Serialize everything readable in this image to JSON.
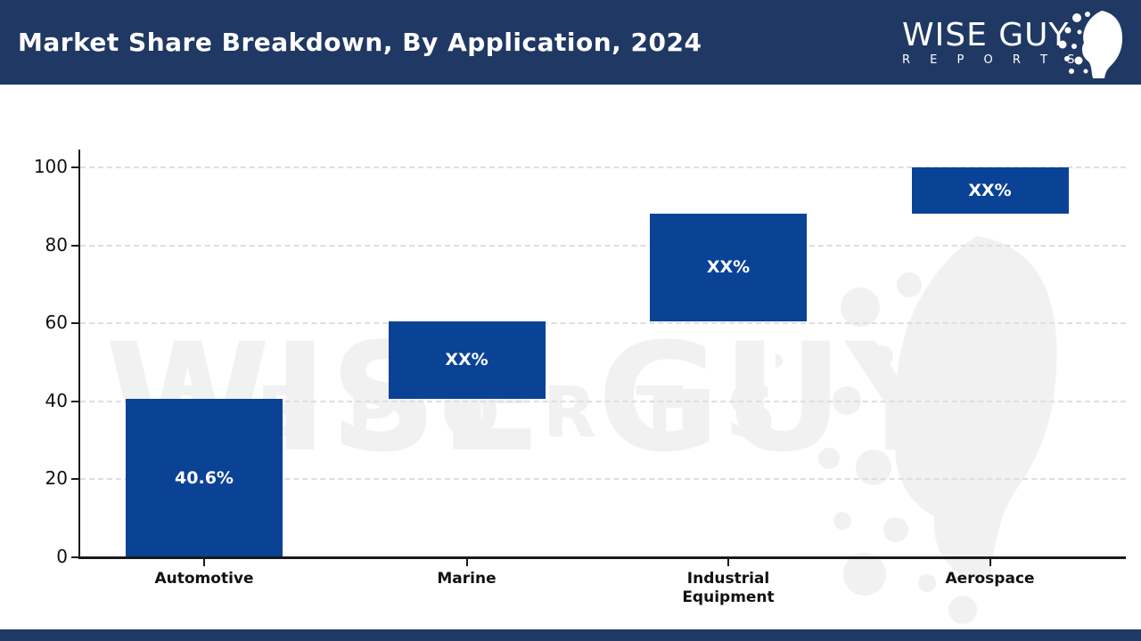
{
  "header": {
    "title": "Market Share Breakdown, By Application, 2024",
    "logo": {
      "line1": "WISE GUY",
      "line2": "R E P O R T S"
    }
  },
  "watermark": {
    "line1": "WISE GUY",
    "line2": "REPORTS"
  },
  "colors": {
    "header_bg": "#1f3864",
    "bar": "#0a4296",
    "bar_label": "#ffffff",
    "grid": "#dedede",
    "axis": "#1a1a1a",
    "watermark": "#f1f1f1"
  },
  "chart_data": {
    "type": "bar",
    "subtype": "waterfall",
    "title": "Market Share Breakdown, By Application, 2024",
    "xlabel": "",
    "ylabel": "",
    "categories": [
      "Automotive",
      "Marine",
      "Industrial Equipment",
      "Aerospace"
    ],
    "segments": [
      {
        "category": "Automotive",
        "start": 0,
        "end": 40.6,
        "value": 40.6,
        "label": "40.6%"
      },
      {
        "category": "Marine",
        "start": 40.6,
        "end": 60.6,
        "value": 20.0,
        "label": "XX%"
      },
      {
        "category": "Industrial Equipment",
        "start": 60.6,
        "end": 88.1,
        "value": 27.5,
        "label": "XX%"
      },
      {
        "category": "Aerospace",
        "start": 88.1,
        "end": 100.0,
        "value": 11.9,
        "label": "XX%"
      }
    ],
    "yticks": [
      0,
      20,
      40,
      60,
      80,
      100
    ],
    "ylim": [
      0,
      105
    ],
    "grid": "horizontal-dashed",
    "legend": "none",
    "bar_color": "#0a4296"
  }
}
